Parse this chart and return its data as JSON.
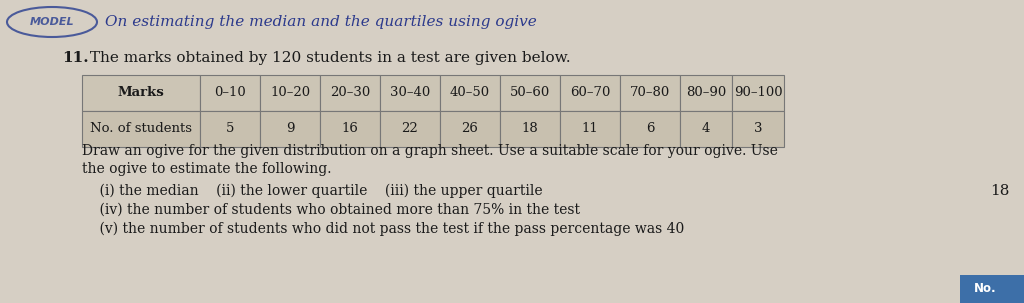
{
  "title": "On estimating the median and the quartiles using ogive",
  "model_label": "MODEL",
  "question_number": "11.",
  "question_text": " The marks obtained by 120 students in a test are given below.",
  "table_headers": [
    "Marks",
    "0–10",
    "10–20",
    "20–30",
    "30–40",
    "40–50",
    "50–60",
    "60–70",
    "70–80",
    "80–90",
    "90–100"
  ],
  "table_row1_label": "No. of students",
  "table_row1_values": [
    "5",
    "9",
    "16",
    "22",
    "26",
    "18",
    "11",
    "6",
    "4",
    "3"
  ],
  "para_line1": "Draw an ogive for the given distribution on a graph sheet. Use a suitable scale for your ogive. Use",
  "para_line2": "the ogive to estimate the following.",
  "item1": "    (i) the median    (ii) the lower quartile    (iii) the upper quartile",
  "item2": "    (iv) the number of students who obtained more than 75% in the test",
  "item3": "    (v) the number of students who did not pass the test if the pass percentage was 40",
  "page_number": "18",
  "bg_color": "#d6cfc4",
  "table_bg_header": "#ccc5b5",
  "table_bg_data": "#c8c0af",
  "table_border_color": "#777777",
  "title_color": "#2c3a8c",
  "text_color": "#1a1a1a",
  "model_oval_bg": "#d6cfc4",
  "model_oval_border": "#4a5a9a",
  "blue_box_color": "#3d6fa8"
}
